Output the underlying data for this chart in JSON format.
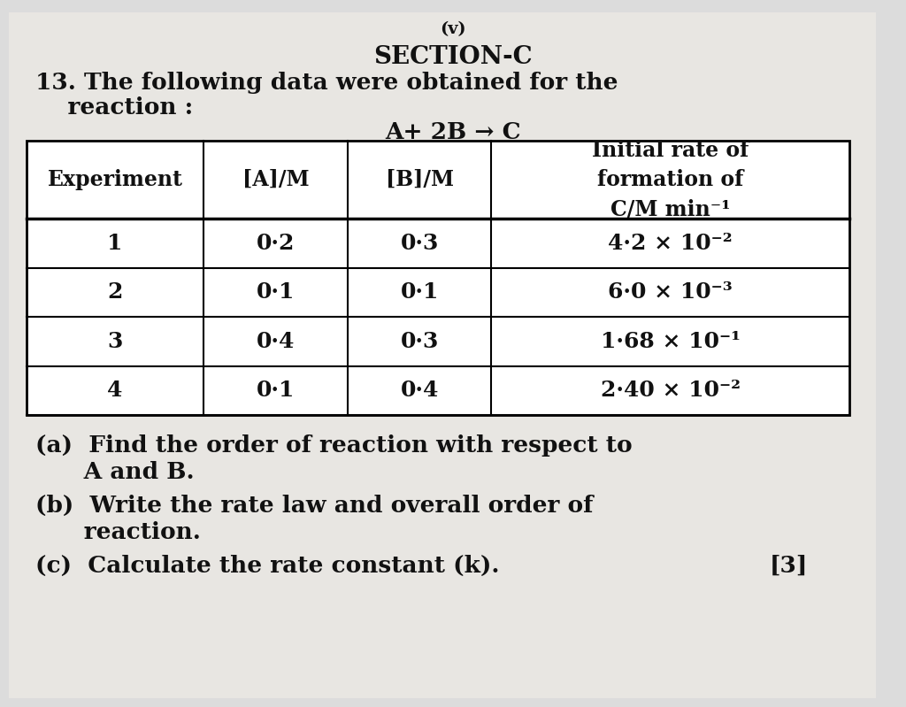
{
  "title_top": "SECTION-C",
  "question_line1": "13. The following data were obtained for the",
  "question_line2": "    reaction :",
  "reaction_equation": "A+ 2B → C",
  "col_headers": [
    "Experiment",
    "[A]/M",
    "[B]/M",
    "Initial rate of\nformation of\nC/M min⁻¹"
  ],
  "table_data": [
    [
      "1",
      "0·2",
      "0·3",
      "4·2 × 10⁻²"
    ],
    [
      "2",
      "0·1",
      "0·1",
      "6·0 × 10⁻³"
    ],
    [
      "3",
      "0·4",
      "0·3",
      "1·68 × 10⁻¹"
    ],
    [
      "4",
      "0·1",
      "0·4",
      "2·40 × 10⁻²"
    ]
  ],
  "q_a": "(a)  Find the order of reaction with respect to",
  "q_a2": "      A and B.",
  "q_b": "(b)  Write the rate law and overall order of",
  "q_b2": "      reaction.",
  "q_c": "(c)  Calculate the rate constant (k).",
  "q_c_mark": "[3]",
  "bg_color": "#c8c8c8",
  "page_color": "#e8e6e0",
  "text_color": "#111111",
  "font_size_title": 20,
  "font_size_body": 19,
  "font_size_table_header": 17,
  "font_size_table_data": 18
}
